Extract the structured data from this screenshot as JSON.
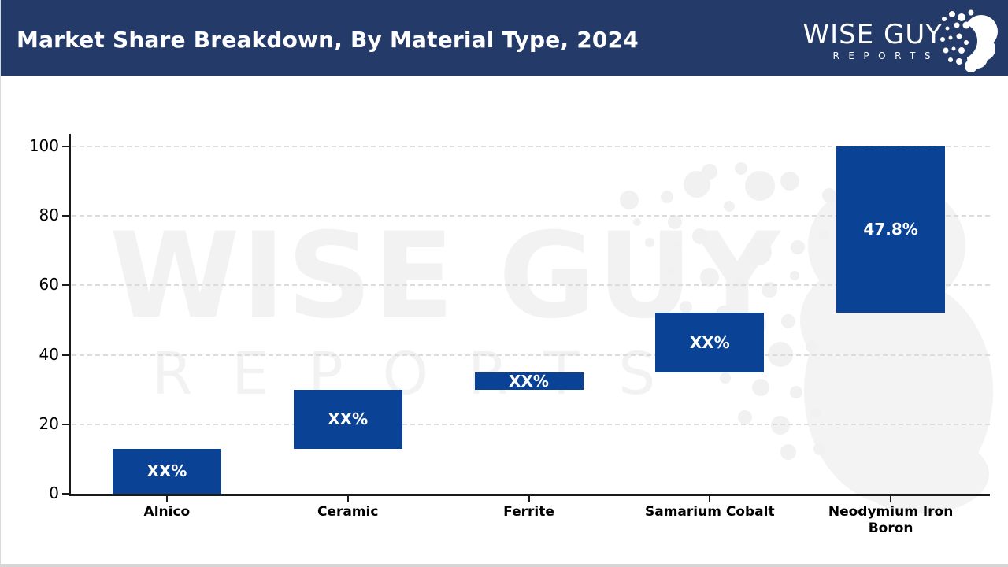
{
  "header": {
    "title": "Market Share Breakdown, By Material Type, 2024",
    "bg_color": "#243a68",
    "logo": {
      "line1": "WISE GUY",
      "line2": "REPORTS"
    }
  },
  "watermark": {
    "line1": "WISE GUY",
    "line2": "REPORTS"
  },
  "chart_data": {
    "type": "bar",
    "subtype": "waterfall",
    "title": "Market Share Breakdown, By Material Type, 2024",
    "xlabel": "",
    "ylabel": "",
    "ylim": [
      0,
      100
    ],
    "y_ticks": [
      0,
      20,
      40,
      60,
      80,
      100
    ],
    "grid": "horizontal dashed",
    "bar_color": "#0a4296",
    "label_color": "#ffffff",
    "categories": [
      "Alnico",
      "Ceramic",
      "Ferrite",
      "Samarium Cobalt",
      "Neodymium Iron Boron"
    ],
    "segments": [
      {
        "category": "Alnico",
        "start": 0,
        "end": 13,
        "label": "XX%"
      },
      {
        "category": "Ceramic",
        "start": 13,
        "end": 30,
        "label": "XX%"
      },
      {
        "category": "Ferrite",
        "start": 30,
        "end": 35,
        "label": "XX%"
      },
      {
        "category": "Samarium Cobalt",
        "start": 35,
        "end": 52.2,
        "label": "XX%"
      },
      {
        "category": "Neodymium Iron Boron",
        "start": 52.2,
        "end": 100,
        "label": "47.8%"
      }
    ]
  }
}
